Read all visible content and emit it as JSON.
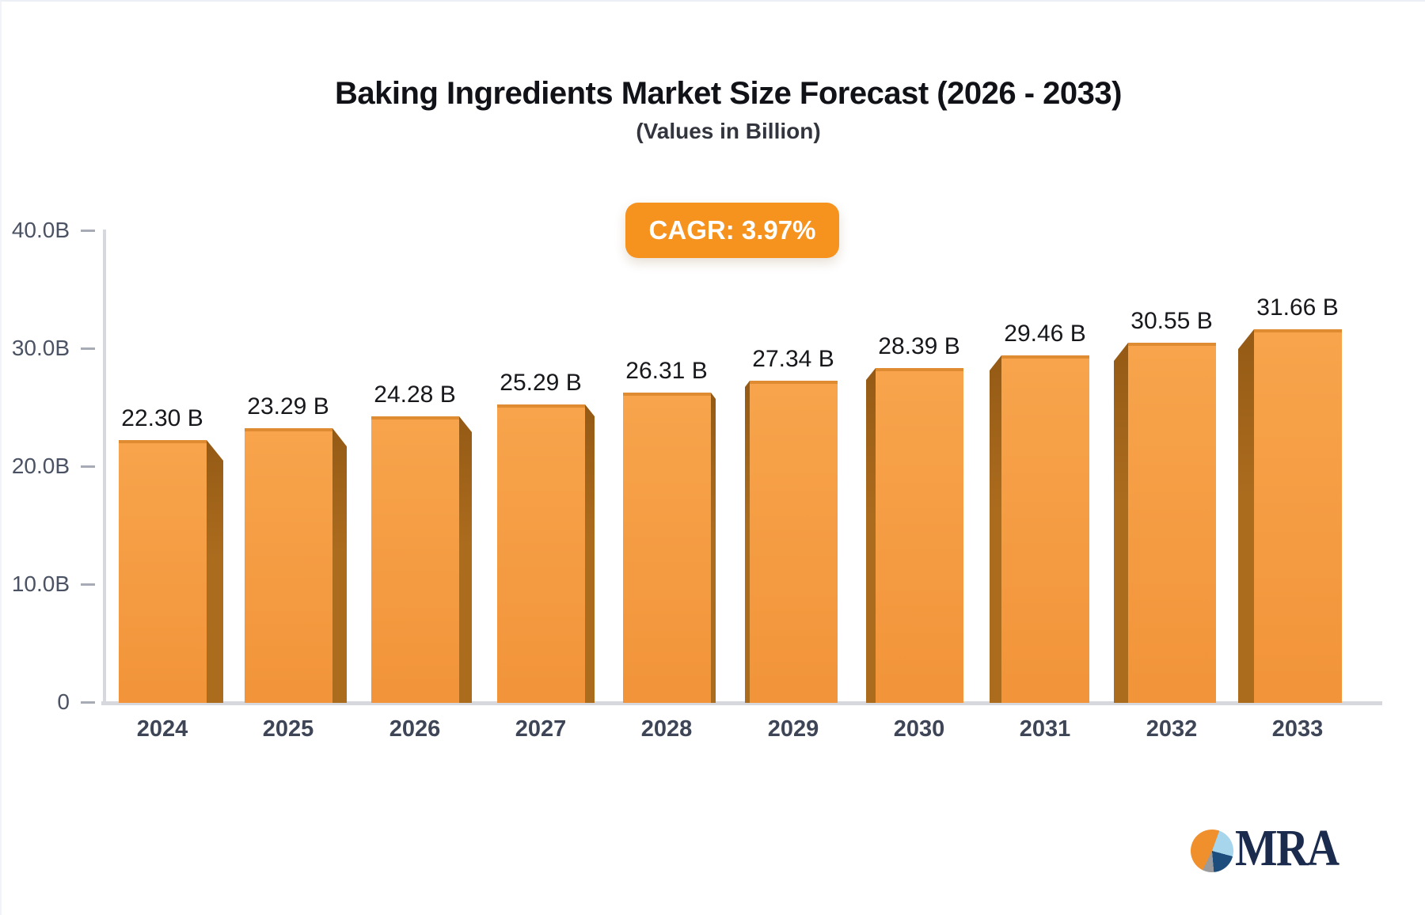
{
  "header": {
    "title": "Baking Ingredients Market Size Forecast (2026 - 2033)",
    "subtitle": "(Values in Billion)"
  },
  "badge": {
    "label": "CAGR: 3.97%",
    "bg_color": "#F6921E",
    "text_color": "#FFFFFF"
  },
  "chart_data": {
    "type": "bar",
    "title": "Baking Ingredients Market Size Forecast (2026 - 2033)",
    "subtitle": "(Values in Billion)",
    "unit": "Billion",
    "categories": [
      "2024",
      "2025",
      "2026",
      "2027",
      "2028",
      "2029",
      "2030",
      "2031",
      "2032",
      "2033"
    ],
    "values": [
      22.3,
      23.29,
      24.28,
      25.29,
      26.31,
      27.34,
      28.39,
      29.46,
      30.55,
      31.66
    ],
    "value_labels": [
      "22.30 B",
      "23.29 B",
      "24.28 B",
      "25.29 B",
      "26.31 B",
      "27.34 B",
      "28.39 B",
      "29.46 B",
      "30.55 B",
      "31.66 B"
    ],
    "cagr": "3.97%",
    "xlabel": "",
    "ylabel": "",
    "ylim": [
      0,
      40
    ],
    "yticks": [
      {
        "value": 40,
        "label": "40.0B"
      },
      {
        "value": 30,
        "label": "30.0B"
      },
      {
        "value": 20,
        "label": "20.0B"
      },
      {
        "value": 10,
        "label": "10.0B"
      },
      {
        "value": 0,
        "label": "0"
      }
    ],
    "grid": false,
    "legend": false,
    "style": {
      "bar_face_top": "#F7A44C",
      "bar_face_bottom": "#F29439",
      "bar_top_line": "#DE8B31",
      "bar_side": "#AC6C1E",
      "bar_side_dark": "#945A15",
      "axis_color": "#D6D8DE",
      "tick_color": "#A7ABB5",
      "ylabel_color": "#4A5263",
      "xlabel_color": "#3D4556",
      "value_label_color": "#17181C"
    }
  },
  "logo": {
    "text": "MRA",
    "colors": {
      "navy": "#1B2B4D",
      "pie_orange": "#F0902C",
      "pie_lightblue": "#A6D5EC",
      "pie_navy": "#1D4D7C",
      "pie_grey": "#9B9B9D"
    }
  }
}
